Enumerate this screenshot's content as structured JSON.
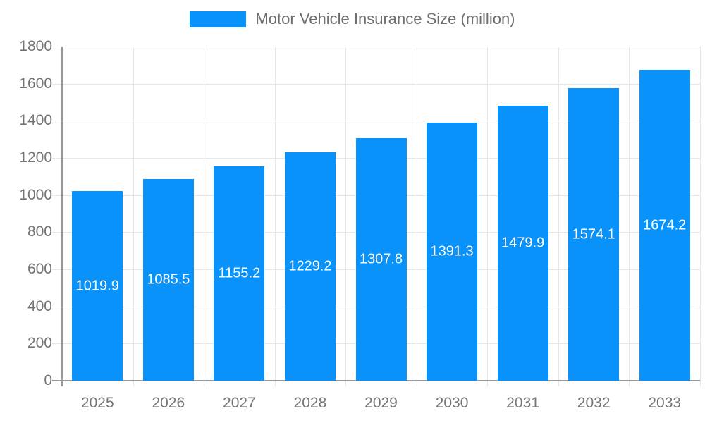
{
  "legend": {
    "label": "Motor Vehicle Insurance Size (million)"
  },
  "chart_data": {
    "type": "bar",
    "title": "Motor Vehicle Insurance Size (million)",
    "categories": [
      "2025",
      "2026",
      "2027",
      "2028",
      "2029",
      "2030",
      "2031",
      "2032",
      "2033"
    ],
    "values": [
      1019.9,
      1085.5,
      1155.2,
      1229.2,
      1307.8,
      1391.3,
      1479.9,
      1574.1,
      1674.2
    ],
    "value_labels": [
      "1019.9",
      "1085.5",
      "1155.2",
      "1229.2",
      "1307.8",
      "1391.3",
      "1479.9",
      "1574.1",
      "1674.2"
    ],
    "xlabel": "",
    "ylabel": "",
    "ylim": [
      0,
      1800
    ],
    "ytick_step": 200,
    "ytick_labels": [
      "0",
      "200",
      "400",
      "600",
      "800",
      "1000",
      "1200",
      "1400",
      "1600",
      "1800"
    ],
    "grid": true,
    "legend_position": "top-center",
    "colors": {
      "bar": "#0992fa",
      "value_label": "#ffffff",
      "axis_text": "#757575",
      "grid_line": "#e6e6e6",
      "axis_line": "#999999",
      "legend_text": "#6e6e6e"
    }
  }
}
